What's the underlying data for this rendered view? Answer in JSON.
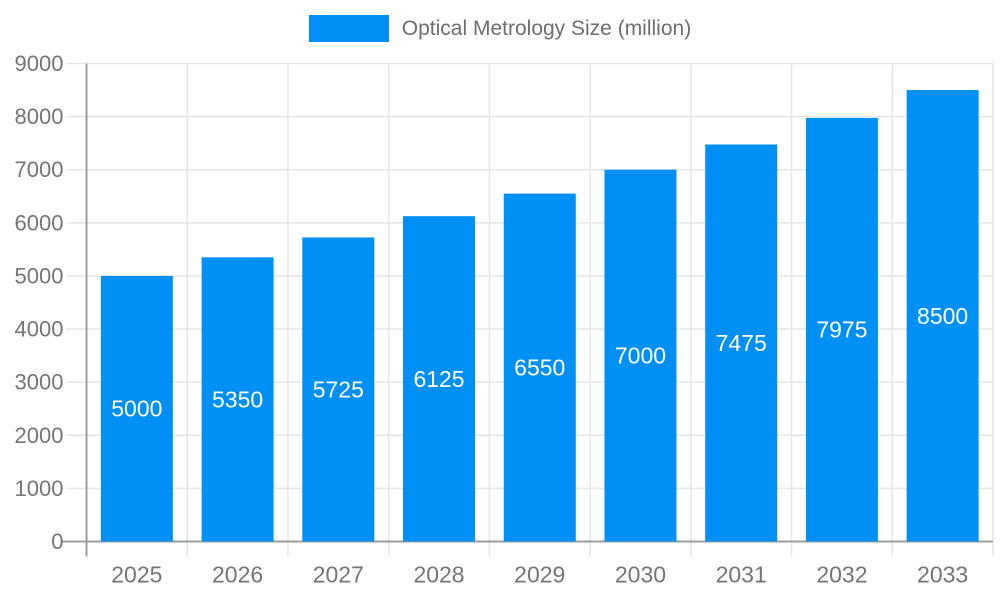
{
  "chart_data": {
    "type": "bar",
    "title": "Optical Metrology Size (million)",
    "legend_entries": [
      "Optical Metrology Size (million)"
    ],
    "legend_position": "top-center",
    "categories": [
      "2025",
      "2026",
      "2027",
      "2028",
      "2029",
      "2030",
      "2031",
      "2032",
      "2033"
    ],
    "series": [
      {
        "name": "Optical Metrology Size (million)",
        "values": [
          5000,
          5350,
          5725,
          6125,
          6550,
          7000,
          7475,
          7975,
          8500
        ]
      }
    ],
    "bar_value_labels": [
      "5000",
      "5350",
      "5725",
      "6125",
      "6550",
      "7000",
      "7475",
      "7975",
      "8500"
    ],
    "xlabel": "",
    "ylabel": "",
    "ylim": [
      0,
      9000
    ],
    "yticks": [
      0,
      1000,
      2000,
      3000,
      4000,
      5000,
      6000,
      7000,
      8000,
      9000
    ],
    "grid": true,
    "value_label_placement": "inside-center",
    "colors": {
      "bar": "#008FF5",
      "grid": "#e6e6e6",
      "axis": "#9e9e9e",
      "tick_text": "#757575",
      "bar_label_text": "#ffffff",
      "legend_text": "#6e6e6e",
      "background": "#ffffff"
    }
  }
}
